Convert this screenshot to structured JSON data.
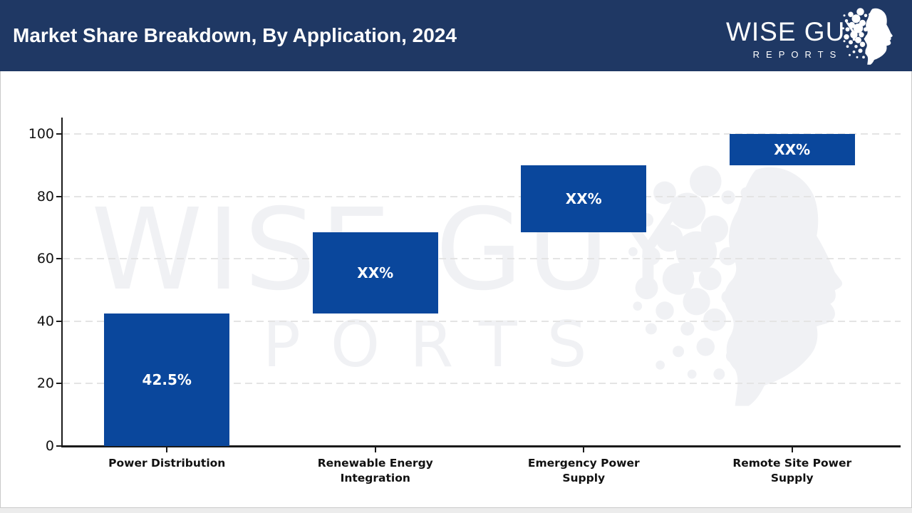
{
  "header": {
    "title": "Market Share Breakdown, By Application, 2024",
    "logo": {
      "line1": "WISE GUY",
      "line2": "REPORTS"
    }
  },
  "watermark": {
    "line1": "WISE GUY",
    "line2": "REPORTS"
  },
  "chart_data": {
    "type": "bar",
    "subtype": "waterfall",
    "title": "Market Share Breakdown, By Application, 2024",
    "categories": [
      "Power Distribution",
      "Renewable Energy Integration",
      "Emergency Power Supply",
      "Remote Site Power Supply"
    ],
    "category_label_lines": [
      [
        "Power Distribution"
      ],
      [
        "Renewable Energy",
        "Integration"
      ],
      [
        "Emergency Power",
        "Supply"
      ],
      [
        "Remote Site Power",
        "Supply"
      ]
    ],
    "segments": [
      {
        "category": "Power Distribution",
        "start": 0,
        "end": 42.5,
        "value_label": "42.5%"
      },
      {
        "category": "Renewable Energy Integration",
        "start": 42.5,
        "end": 68.5,
        "value_label": "XX%"
      },
      {
        "category": "Emergency Power Supply",
        "start": 68.5,
        "end": 90,
        "value_label": "XX%"
      },
      {
        "category": "Remote Site Power Supply",
        "start": 90,
        "end": 100,
        "value_label": "XX%"
      }
    ],
    "xlabel": "",
    "ylabel": "",
    "yticks": [
      0,
      20,
      40,
      60,
      80,
      100
    ],
    "ylim": [
      0,
      105
    ],
    "grid": "horizontal-dashed",
    "legend": "none"
  },
  "colors": {
    "header_bg": "#1f3864",
    "bar": "#0a479c",
    "bar_label": "#ffffff",
    "axis": "#1a1a1a",
    "grid": "#e4e4e4",
    "watermark": "#f0f1f4",
    "footer_strip": "#ececec"
  }
}
